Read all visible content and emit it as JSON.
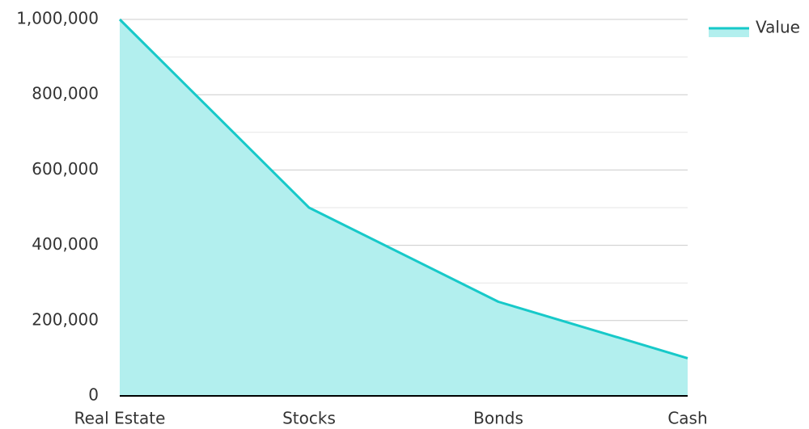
{
  "chart_data": {
    "type": "area",
    "categories": [
      "Real Estate",
      "Stocks",
      "Bonds",
      "Cash"
    ],
    "series": [
      {
        "name": "Value",
        "values": [
          1000000,
          500000,
          250000,
          100000
        ]
      }
    ],
    "ylim": [
      0,
      1000000
    ],
    "y_ticks": [
      0,
      200000,
      400000,
      600000,
      800000,
      1000000
    ],
    "y_tick_labels": [
      "0",
      "200,000",
      "400,000",
      "600,000",
      "800,000",
      "1,000,000"
    ],
    "grid": true,
    "legend": "top-right",
    "colors": {
      "line": "#17c9c9",
      "fill": "#b2efee",
      "axis": "#000000",
      "grid": "#cccccc",
      "minor_grid": "#e6e6e6"
    }
  }
}
